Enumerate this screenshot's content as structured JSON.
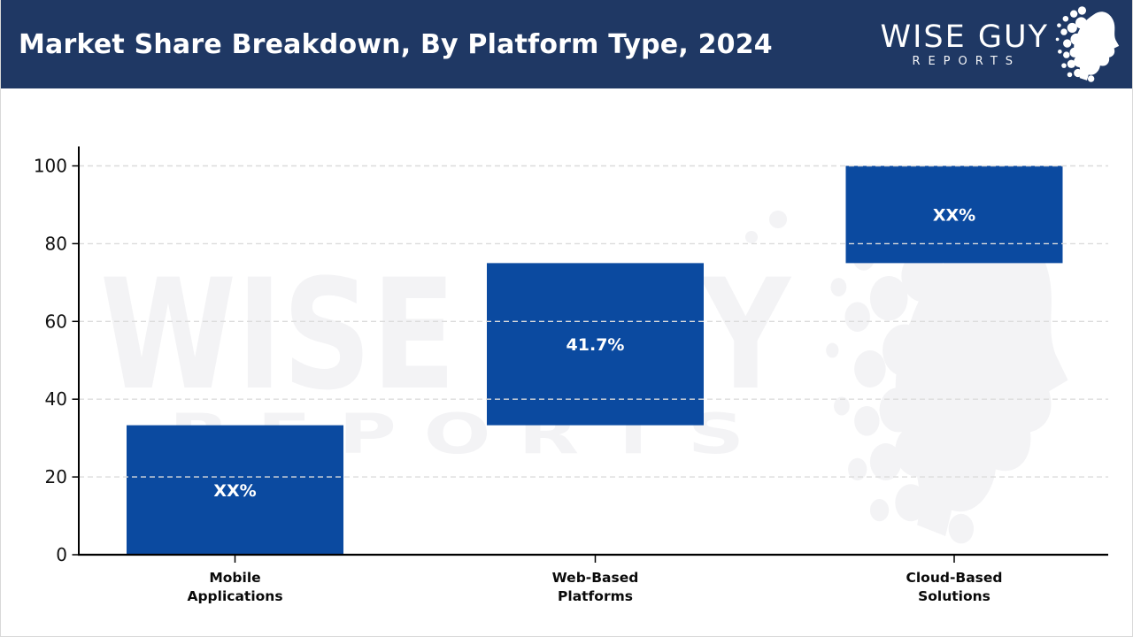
{
  "header": {
    "title": "Market Share Breakdown, By Platform Type, 2024",
    "logo": {
      "brand": "WISE GUY",
      "sub": "REPORTS"
    }
  },
  "watermark": {
    "brand": "WISE GUY",
    "sub": "R E P O R T S"
  },
  "colors": {
    "header_bg": "#1F3864",
    "bar": "#0B4AA0",
    "grid": "#DCDCDC",
    "axis": "#000000",
    "tick_label": "#111111",
    "category_label": "#0A0A0A",
    "bar_label": "#FFFFFF",
    "watermark": "#F3F3F5",
    "page_border": "#D9D9D9"
  },
  "chart_data": {
    "type": "waterfall-bar",
    "title": "Market Share Breakdown, By Platform Type, 2024",
    "orientation": "vertical",
    "grid": "horizontal-dashed",
    "legend": "none",
    "ylim": [
      0,
      105
    ],
    "yticks": [
      0,
      20,
      40,
      60,
      80,
      100
    ],
    "categories": [
      "Mobile Applications",
      "Web-Based Platforms",
      "Cloud-Based Solutions"
    ],
    "segments": [
      {
        "category_lines": [
          "Mobile",
          "Applications"
        ],
        "start": 0,
        "end": 33.3,
        "value": 33.3,
        "label": "XX%"
      },
      {
        "category_lines": [
          "Web-Based",
          "Platforms"
        ],
        "start": 33.3,
        "end": 75,
        "value": 41.7,
        "label": "41.7%"
      },
      {
        "category_lines": [
          "Cloud-Based",
          "Solutions"
        ],
        "start": 75,
        "end": 100,
        "value": 25,
        "label": "XX%"
      }
    ]
  }
}
